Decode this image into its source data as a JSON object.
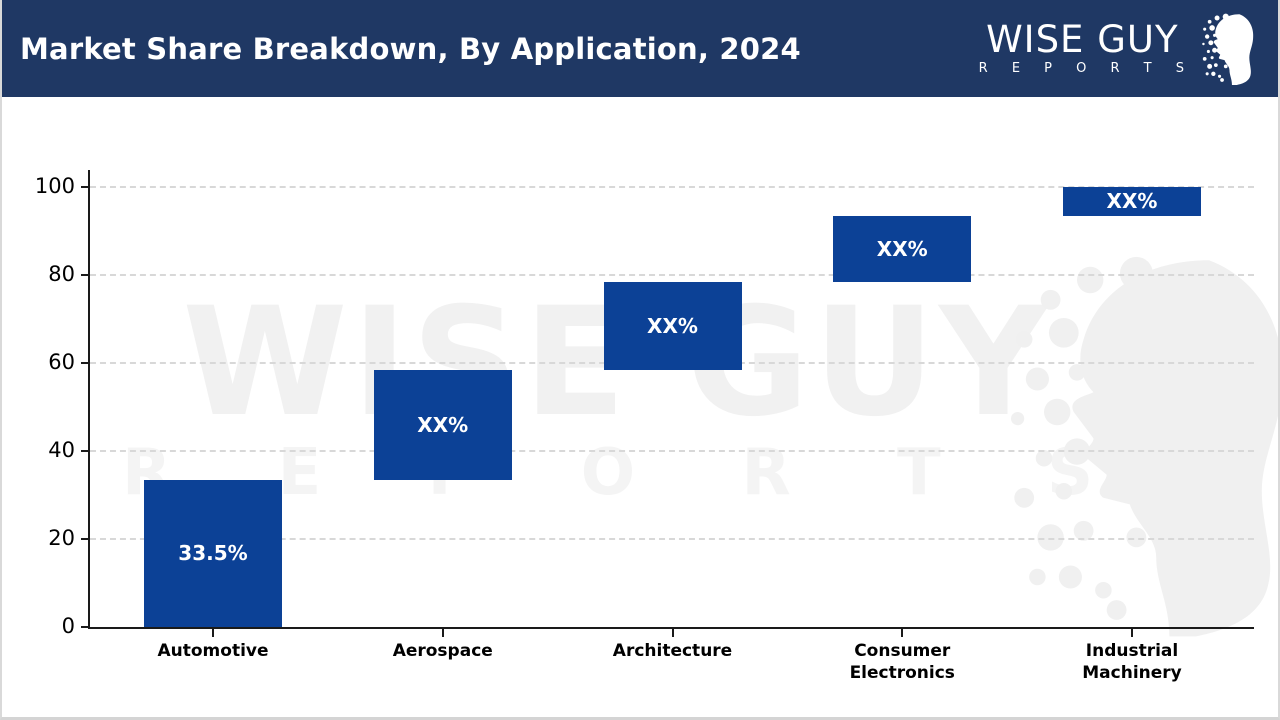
{
  "header": {
    "title": "Market Share Breakdown, By Application, 2024",
    "background_color": "#1f3864",
    "logo": {
      "title": "WISE GUY",
      "subtitle": "R E P O R T S"
    }
  },
  "watermark": {
    "title": "WISE GUY",
    "subtitle": "R E P O R T S"
  },
  "chart_data": {
    "type": "bar",
    "subtype": "waterfall",
    "title": "Market Share Breakdown, By Application, 2024",
    "xlabel": "",
    "ylabel": "",
    "ylim": [
      0,
      100
    ],
    "yticks": [
      0,
      20,
      40,
      60,
      80,
      100
    ],
    "grid": "horizontal-dashed",
    "legend": "none",
    "bar_color": "#0c4196",
    "bar_label_color": "#ffffff",
    "categories": [
      {
        "name": "Automotive",
        "lines": [
          "Automotive"
        ]
      },
      {
        "name": "Aerospace",
        "lines": [
          "Aerospace"
        ]
      },
      {
        "name": "Architecture",
        "lines": [
          "Architecture"
        ]
      },
      {
        "name": "Consumer Electronics",
        "lines": [
          "Consumer",
          "Electronics"
        ]
      },
      {
        "name": "Industrial Machinery",
        "lines": [
          "Industrial",
          "Machinery"
        ]
      }
    ],
    "values": [
      {
        "category": "Automotive",
        "start": 0,
        "end": 33.5,
        "label": "33.5%"
      },
      {
        "category": "Aerospace",
        "start": 33.5,
        "end": 58.5,
        "label": "XX%"
      },
      {
        "category": "Architecture",
        "start": 58.5,
        "end": 78.5,
        "label": "XX%"
      },
      {
        "category": "Consumer Electronics",
        "start": 78.5,
        "end": 93.5,
        "label": "XX%"
      },
      {
        "category": "Industrial Machinery",
        "start": 93.5,
        "end": 100,
        "label": "XX%"
      }
    ]
  }
}
